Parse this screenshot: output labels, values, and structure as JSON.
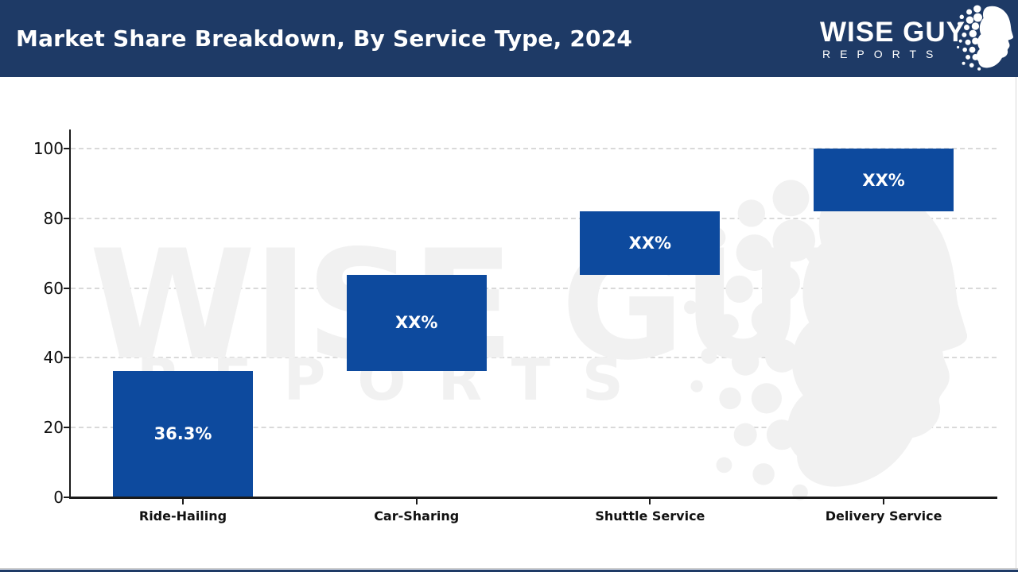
{
  "header": {
    "title": "Market Share Breakdown, By Service Type, 2024",
    "logo": {
      "line1": "WISE GUY",
      "line2": "REPORTS"
    }
  },
  "watermark": {
    "line1": "WISE GUY",
    "line2": "REPORTS"
  },
  "colors": {
    "header_bg": "#1e3a66",
    "bar_blue": "#0d4a9e",
    "bar_label_text": "#ffffff",
    "gridline": "#d9d9d9",
    "axis": "#1a1a1a",
    "watermark": "#f1f1f1",
    "footer_strip": "#1e3a66"
  },
  "chart_data": {
    "type": "bar",
    "subtype": "waterfall",
    "title": "Market Share Breakdown, By Service Type, 2024",
    "categories": [
      "Ride-Hailing",
      "Car-Sharing",
      "Shuttle Service",
      "Delivery Service"
    ],
    "values_displayed": [
      "36.3%",
      "XX%",
      "XX%",
      "XX%"
    ],
    "segments": [
      {
        "category": "Ride-Hailing",
        "start": 0,
        "end": 36.3,
        "label": "36.3%"
      },
      {
        "category": "Car-Sharing",
        "start": 36.3,
        "end": 63.7,
        "label": "XX%"
      },
      {
        "category": "Shuttle Service",
        "start": 63.7,
        "end": 81.9,
        "label": "XX%"
      },
      {
        "category": "Delivery Service",
        "start": 81.9,
        "end": 100,
        "label": "XX%"
      }
    ],
    "y_ticks": [
      0,
      20,
      40,
      60,
      80,
      100
    ],
    "ylim": [
      0,
      100
    ],
    "xlabel": "",
    "ylabel": "",
    "grid": "horizontal-dashed",
    "legend": "none",
    "bar_color": "#0d4a9e",
    "label_color": "#ffffff"
  }
}
